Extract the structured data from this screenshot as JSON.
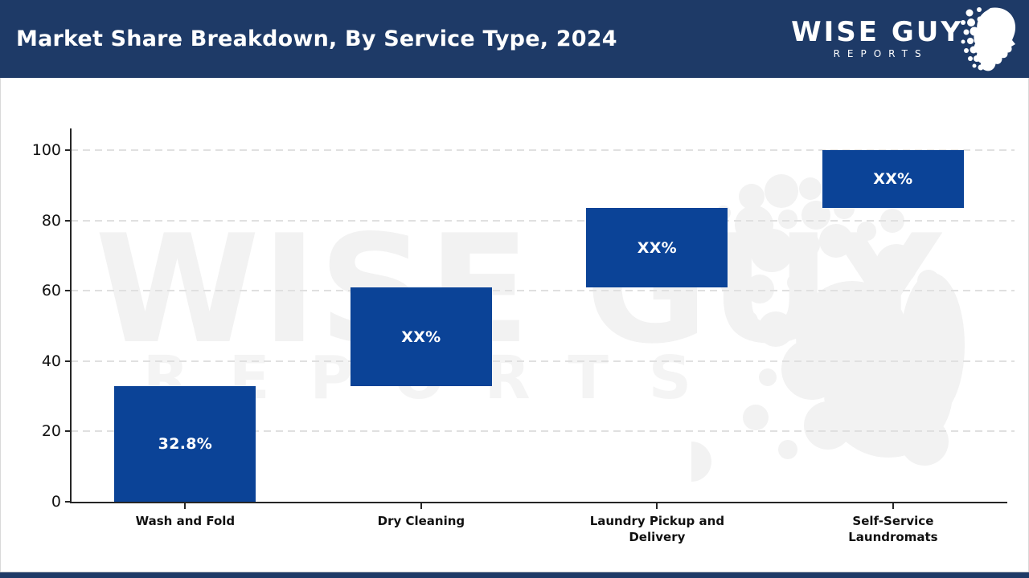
{
  "header": {
    "title": "Market Share Breakdown, By Service Type, 2024",
    "logo": {
      "line1": "WISE GUY",
      "line2": "REPORTS"
    }
  },
  "watermark": {
    "line1": "WISE GUY",
    "line2": "REPORTS"
  },
  "colors": {
    "header_bg": "#1e3a67",
    "bar": "#0b4397",
    "grid": "#e0e0e0",
    "axis": "#262626",
    "bar_label": "#ffffff",
    "watermark": "#f2f2f2"
  },
  "chart_data": {
    "type": "bar",
    "subtype": "waterfall-floating-bars",
    "title": "Market Share Breakdown, By Service Type, 2024",
    "categories": [
      "Wash and Fold",
      "Dry Cleaning",
      "Laundry Pickup and\nDelivery",
      "Self-Service\nLaundromats"
    ],
    "segments": [
      {
        "category": "Wash and Fold",
        "start": 0,
        "end": 32.8,
        "label": "32.8%"
      },
      {
        "category": "Dry Cleaning",
        "start": 32.8,
        "end": 61,
        "label": "XX%"
      },
      {
        "category": "Laundry Pickup and Delivery",
        "start": 61,
        "end": 83.5,
        "label": "XX%"
      },
      {
        "category": "Self-Service Laundromats",
        "start": 83.5,
        "end": 100,
        "label": "XX%"
      }
    ],
    "ylim": [
      0,
      100
    ],
    "yticks": [
      0,
      20,
      40,
      60,
      80,
      100
    ],
    "xlabel": "",
    "ylabel": "",
    "grid": "horizontal-dashed",
    "legend": "none"
  }
}
